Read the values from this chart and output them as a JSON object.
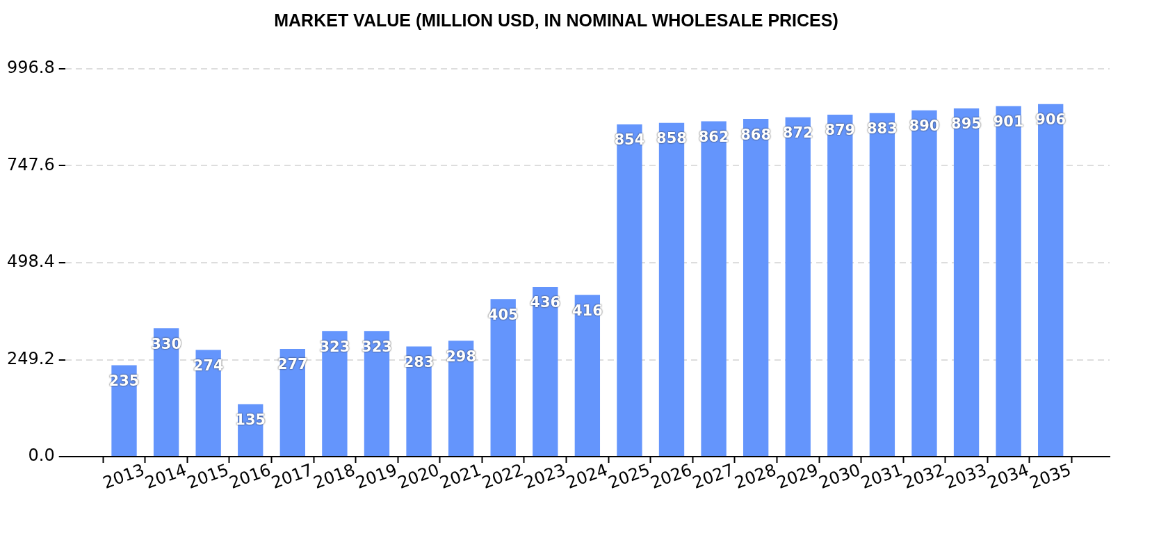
{
  "chart_data": {
    "type": "bar",
    "title": "MARKET VALUE (MILLION USD, IN NOMINAL WHOLESALE PRICES)",
    "categories": [
      "2013",
      "2014",
      "2015",
      "2016",
      "2017",
      "2018",
      "2019",
      "2020",
      "2021",
      "2022",
      "2023",
      "2024",
      "2025",
      "2026",
      "2027",
      "2028",
      "2029",
      "2030",
      "2031",
      "2032",
      "2033",
      "2034",
      "2035"
    ],
    "values": [
      235,
      330,
      274,
      135,
      277,
      323,
      323,
      283,
      298,
      405,
      436,
      416,
      854,
      858,
      862,
      868,
      872,
      879,
      883,
      890,
      895,
      901,
      906
    ],
    "color": "#6495fc",
    "ylim": [
      0,
      996.8
    ],
    "yticks": [
      {
        "value": 0,
        "label": "0.0"
      },
      249.2,
      498.4,
      747.6,
      996.8
    ],
    "grid": "y",
    "data_labels": true
  }
}
